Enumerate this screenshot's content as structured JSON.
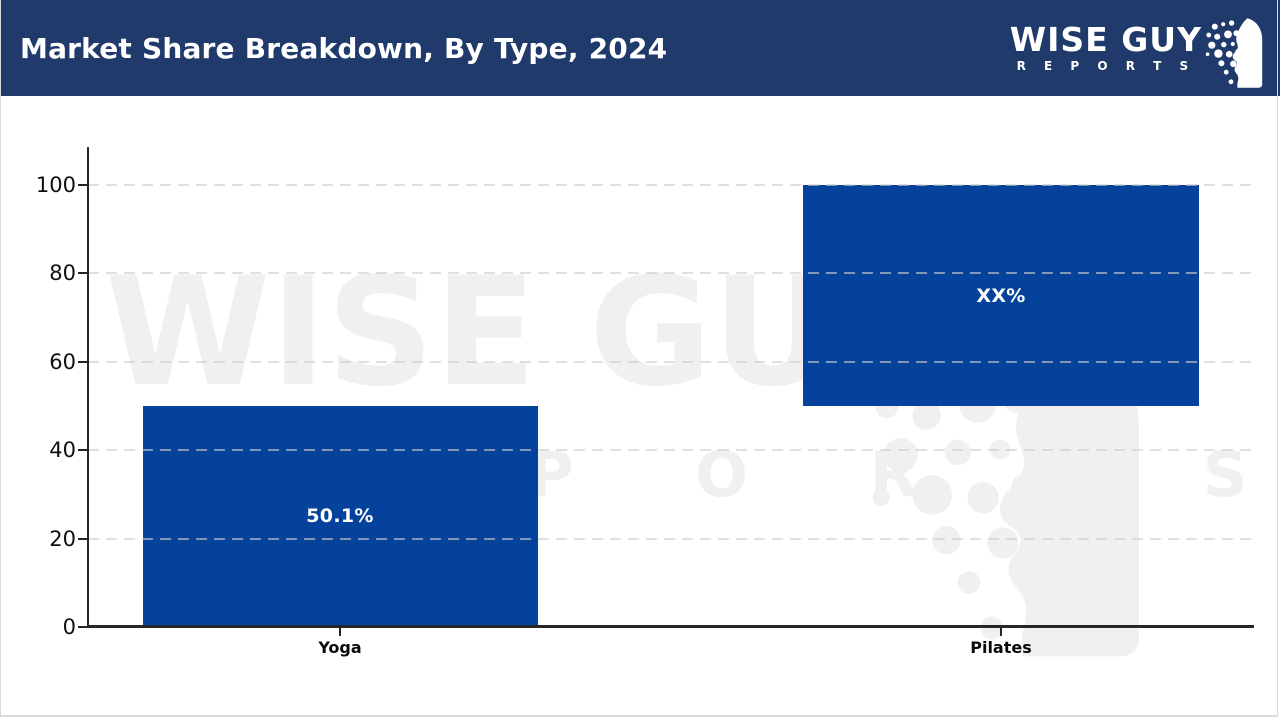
{
  "header": {
    "title": "Market Share Breakdown, By Type, 2024",
    "logo": {
      "line1": "WISE GUY",
      "line2": "R E P O R T S"
    }
  },
  "watermark": {
    "line1": "WISE GUY",
    "line2": "R E P O R T S"
  },
  "colors": {
    "header_bg": "#203a6b",
    "bar": "#04429c",
    "grid": "#cdcdcd",
    "axis": "#262626",
    "watermark": "#f0f0f3",
    "frame_edge": "#d9d9d9",
    "title_text": "#ffffff",
    "bar_label_text": "#ffffff"
  },
  "chart_data": {
    "type": "bar",
    "title": "Market Share Breakdown, By Type, 2024",
    "categories": [
      "Yoga",
      "Pilates"
    ],
    "bars": [
      {
        "category": "Yoga",
        "start": 0,
        "end": 50.1,
        "label": "50.1%"
      },
      {
        "category": "Pilates",
        "start": 50,
        "end": 100,
        "label": "XX%"
      }
    ],
    "yticks": [
      0,
      20,
      40,
      60,
      80,
      100
    ],
    "ylim": [
      0,
      105
    ],
    "unit": "%",
    "grid": "horizontal dashed, drawn above bars",
    "legend": "none",
    "note": "Pilates value masked as XX% in preview; bars form stacked waterfall totaling 100%"
  }
}
